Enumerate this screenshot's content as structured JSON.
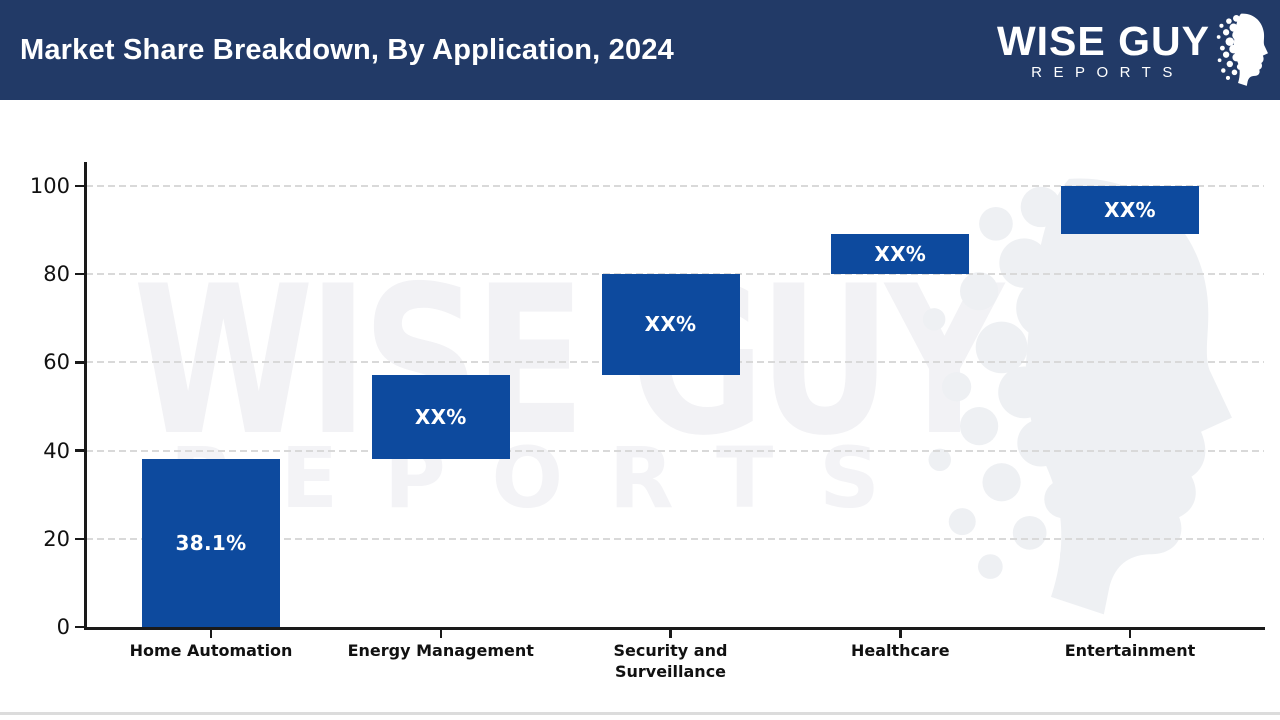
{
  "header": {
    "title": "Market Share Breakdown, By Application, 2024",
    "logo": {
      "brand_line1": "WISE GUY",
      "brand_line2": "REPORTS"
    }
  },
  "watermark": {
    "line1": "WISE GUY",
    "line2": "REPORTS"
  },
  "chart_data": {
    "type": "bar",
    "subtype": "waterfall",
    "title": "Market Share Breakdown, By Application, 2024",
    "categories": [
      "Home Automation",
      "Energy Management",
      "Security and Surveillance",
      "Healthcare",
      "Entertainment"
    ],
    "xtick_lines": [
      [
        "Home Automation"
      ],
      [
        "Energy Management"
      ],
      [
        "Security and",
        "Surveillance"
      ],
      [
        "Healthcare"
      ],
      [
        "Entertainment"
      ]
    ],
    "segments": [
      {
        "category": "Home Automation",
        "start": 0,
        "end": 38.1,
        "label": "38.1%"
      },
      {
        "category": "Energy Management",
        "start": 38.1,
        "end": 57.1,
        "label": "XX%"
      },
      {
        "category": "Security and Surveillance",
        "start": 57.1,
        "end": 80.1,
        "label": "XX%"
      },
      {
        "category": "Healthcare",
        "start": 80.1,
        "end": 89.1,
        "label": "XX%"
      },
      {
        "category": "Entertainment",
        "start": 89.1,
        "end": 100,
        "label": "XX%"
      }
    ],
    "yticks": [
      0,
      20,
      40,
      60,
      80,
      100
    ],
    "ylim": [
      0,
      105
    ],
    "xlabel": "",
    "ylabel": "",
    "grid": true,
    "legend": false,
    "bar_color": "#0d4a9e",
    "bar_label_color": "#ffffff"
  },
  "colors": {
    "header_bg": "#223a67",
    "bar": "#0d4a9e",
    "axis": "#1a1a1a",
    "gridline": "#d9d9d9",
    "watermark": "#f2f2f5",
    "title_text": "#ffffff"
  }
}
